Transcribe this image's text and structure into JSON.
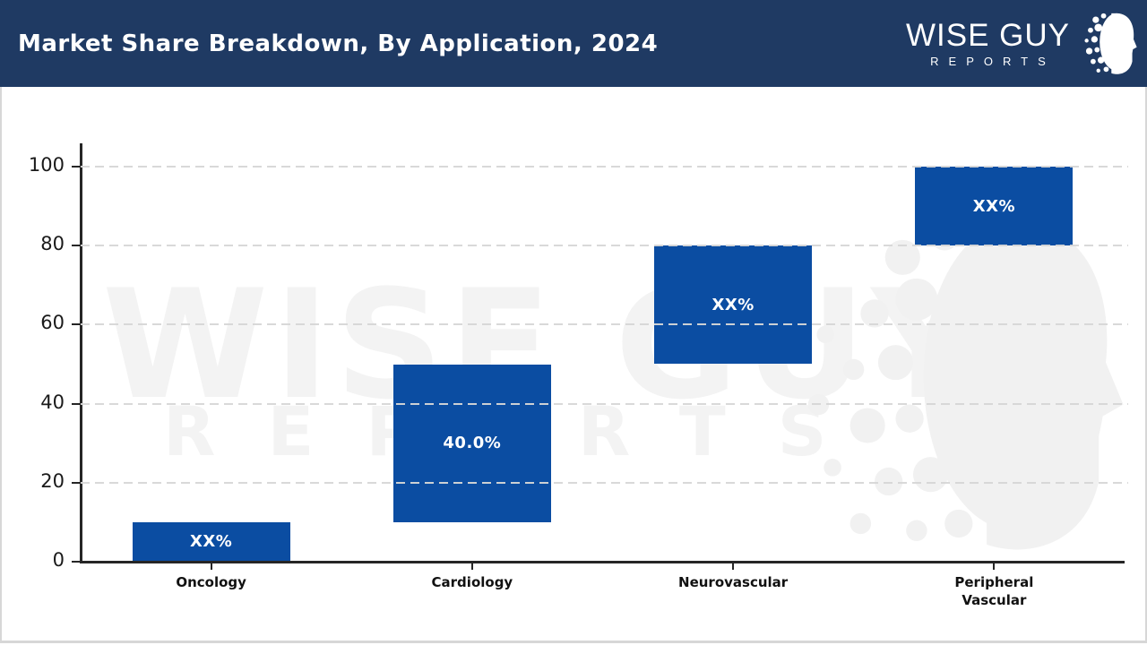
{
  "header": {
    "title": "Market Share Breakdown, By Application, 2024",
    "logo": {
      "brand_line1": "WISE GUY",
      "brand_line2": "REPORTS"
    }
  },
  "watermark": {
    "line1": "WISE GUY",
    "line2": "REPORTS"
  },
  "colors": {
    "header_bg": "#1f3a63",
    "bar": "#0b4da2",
    "axis": "#262626",
    "grid": "#d7d7d7",
    "watermark": "#f2f2f2"
  },
  "chart_data": {
    "type": "bar",
    "variant": "waterfall",
    "title": "Market Share Breakdown, By Application, 2024",
    "xlabel": "",
    "ylabel": "",
    "categories": [
      "Oncology",
      "Cardiology",
      "Neurovascular",
      "Peripheral Vascular"
    ],
    "x_tick_display": [
      "Oncology",
      "Cardiology",
      "Neurovascular",
      "Peripheral\nVascular"
    ],
    "series": [
      {
        "name": "Market share (%)",
        "segments": [
          {
            "category": "Oncology",
            "start": 0,
            "end": 10,
            "label": "XX%"
          },
          {
            "category": "Cardiology",
            "start": 10,
            "end": 50,
            "label": "40.0%"
          },
          {
            "category": "Neurovascular",
            "start": 50,
            "end": 80,
            "label": "XX%"
          },
          {
            "category": "Peripheral Vascular",
            "start": 80,
            "end": 100,
            "label": "XX%"
          }
        ]
      }
    ],
    "yticks": [
      0,
      20,
      40,
      60,
      80,
      100
    ],
    "ylim": [
      0,
      106
    ],
    "grid": {
      "horizontal": true,
      "style": "dashed"
    },
    "legend_position": "none",
    "bar_color": "#0b4da2",
    "bar_label_color": "#ffffff"
  }
}
